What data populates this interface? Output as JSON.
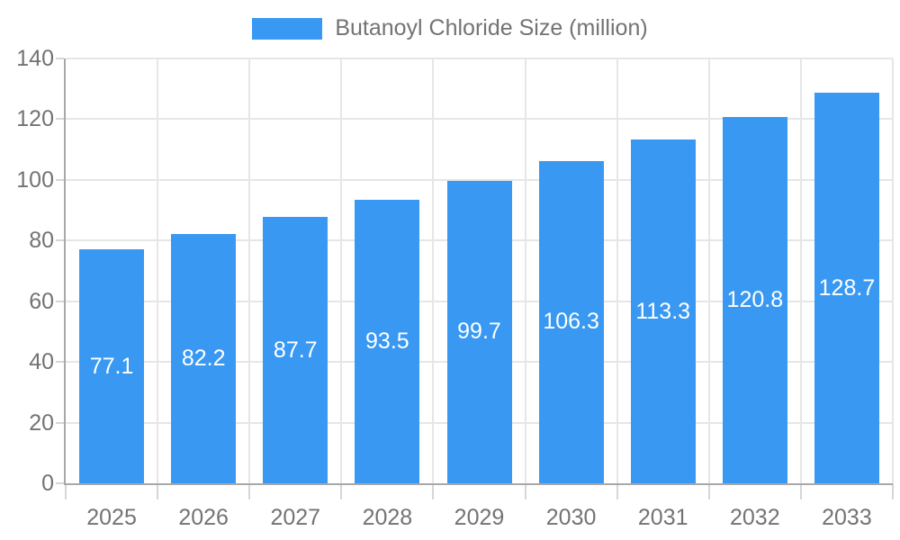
{
  "legend": {
    "label": "Butanoyl Chloride Size (million)"
  },
  "colors": {
    "bar": "#3999F2",
    "axis_line": "#a8a8a8",
    "grid_line": "#e6e6e6",
    "tick": "#d6d6d6",
    "label_text": "#737373",
    "bar_label_text": "#ffffff",
    "background": "#ffffff"
  },
  "chart_data": {
    "type": "bar",
    "title": "Butanoyl Chloride Size (million)",
    "series_name": "Butanoyl Chloride Size (million)",
    "categories": [
      "2025",
      "2026",
      "2027",
      "2028",
      "2029",
      "2030",
      "2031",
      "2032",
      "2033"
    ],
    "values": [
      77.1,
      82.2,
      87.7,
      93.5,
      99.7,
      106.3,
      113.3,
      120.8,
      128.7
    ],
    "xlabel": "",
    "ylabel": "",
    "ylim": [
      0,
      140
    ],
    "ytick_step": 20,
    "ytick_labels": [
      "0",
      "20",
      "40",
      "60",
      "80",
      "100",
      "120",
      "140"
    ],
    "grid": true,
    "legend_position": "top",
    "bar_labels": "inside-middle"
  }
}
